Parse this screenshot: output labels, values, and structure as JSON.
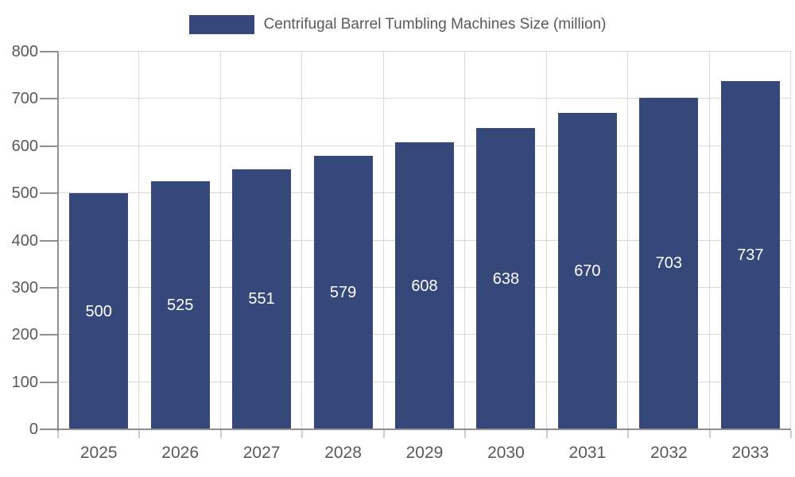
{
  "chart_data": {
    "type": "bar",
    "title": "Centrifugal Barrel Tumbling Machines Size (million)",
    "categories": [
      "2025",
      "2026",
      "2027",
      "2028",
      "2029",
      "2030",
      "2031",
      "2032",
      "2033"
    ],
    "values": [
      500,
      525,
      551,
      579,
      608,
      638,
      670,
      703,
      737
    ],
    "xlabel": "",
    "ylabel": "",
    "ylim": [
      0,
      800
    ],
    "yticks": [
      0,
      100,
      200,
      300,
      400,
      500,
      600,
      700,
      800
    ],
    "grid": true,
    "legend_position": "top-center",
    "colors": {
      "bar": "#36477a",
      "grid": "#d9d9d9",
      "axis_line": "#8f8f8f",
      "x_tick": "#c9cdd6",
      "tick_text": "#595959",
      "value_label": "#ffffff",
      "background": "#ffffff"
    }
  }
}
